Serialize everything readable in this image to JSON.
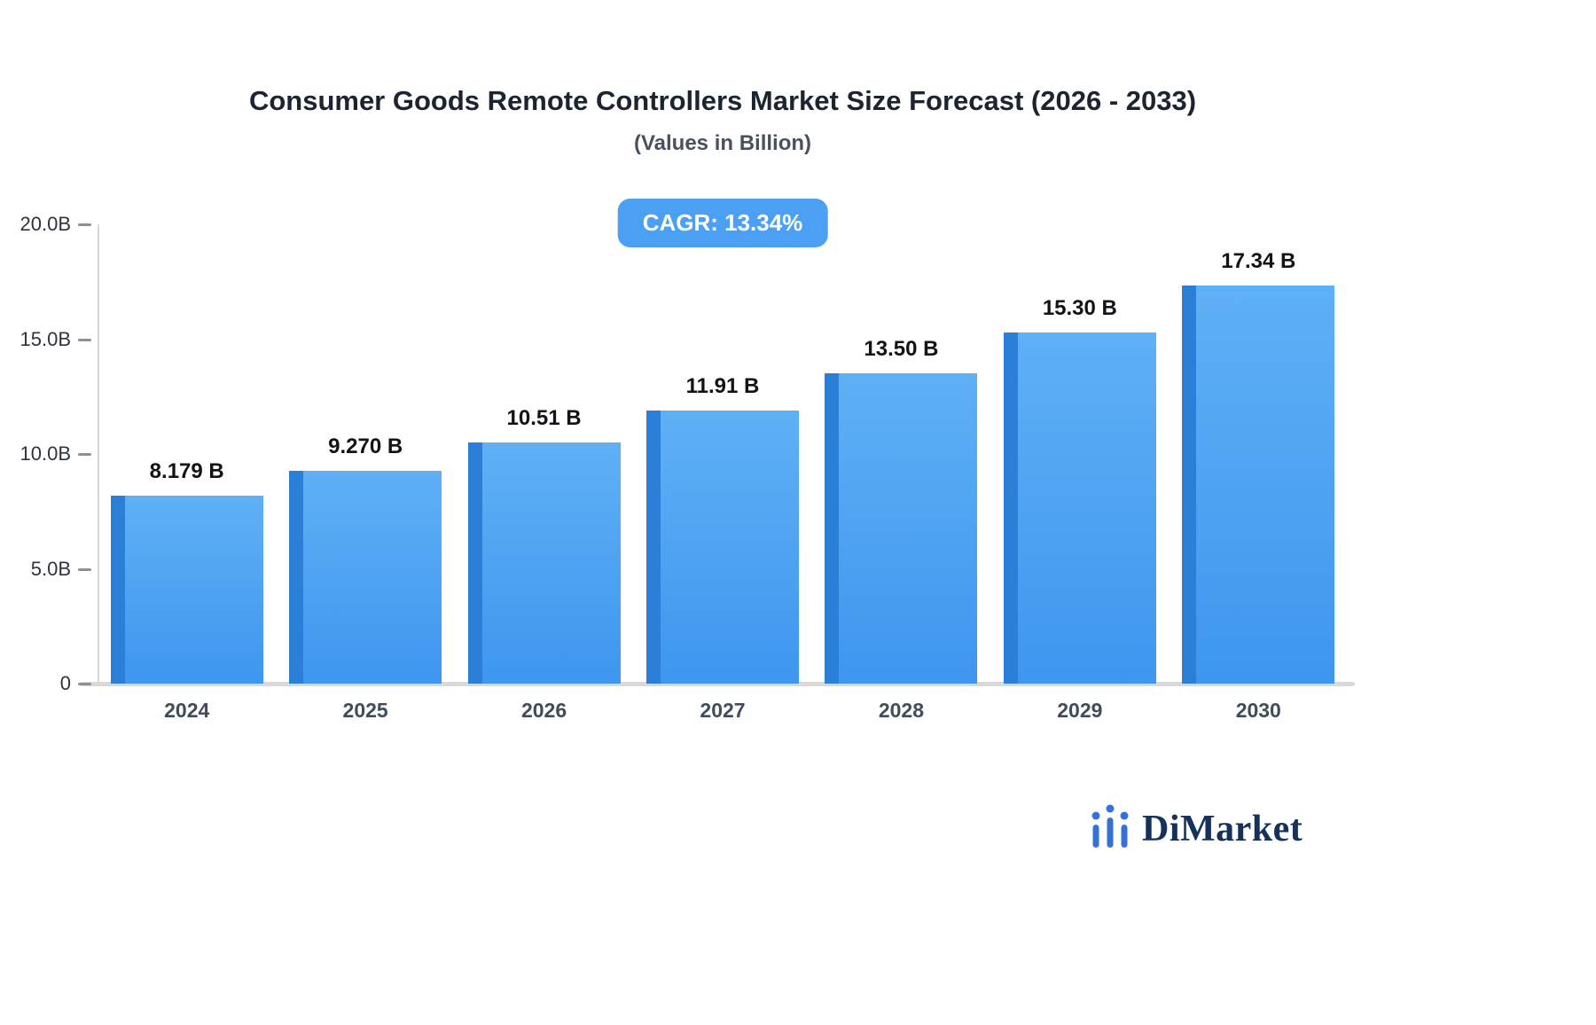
{
  "header": {
    "title": "Consumer Goods Remote Controllers Market Size Forecast (2026 - 2033)",
    "subtitle": "(Values in Billion)"
  },
  "badge": {
    "label": "CAGR: 13.34%",
    "bg": "#4BA0F4"
  },
  "chart_data": {
    "type": "bar",
    "title": "Consumer Goods Remote Controllers Market Size Forecast (2026 - 2033)",
    "subtitle": "(Values in Billion)",
    "categories": [
      "2024",
      "2025",
      "2026",
      "2027",
      "2028",
      "2029",
      "2030"
    ],
    "values": [
      8.179,
      9.27,
      10.51,
      11.91,
      13.5,
      15.3,
      17.34
    ],
    "value_labels": [
      "8.179 B",
      "9.270 B",
      "10.51 B",
      "11.91 B",
      "13.50 B",
      "15.30 B",
      "17.34 B"
    ],
    "xlabel": "",
    "ylabel": "",
    "ylim": [
      0,
      20
    ],
    "yticks": [
      {
        "value": 0,
        "label": "0"
      },
      {
        "value": 5,
        "label": "5.0B"
      },
      {
        "value": 10,
        "label": "10.0B"
      },
      {
        "value": 15,
        "label": "15.0B"
      },
      {
        "value": 20,
        "label": "20.0B"
      }
    ],
    "grid": false,
    "legend": false,
    "bar_color_top": "#5FB0F5",
    "bar_color_bottom": "#3E96EF",
    "bar_side_color": "#2B7FD6"
  },
  "logo": {
    "text": "DiMarket",
    "icon_color": "#3572D8"
  }
}
